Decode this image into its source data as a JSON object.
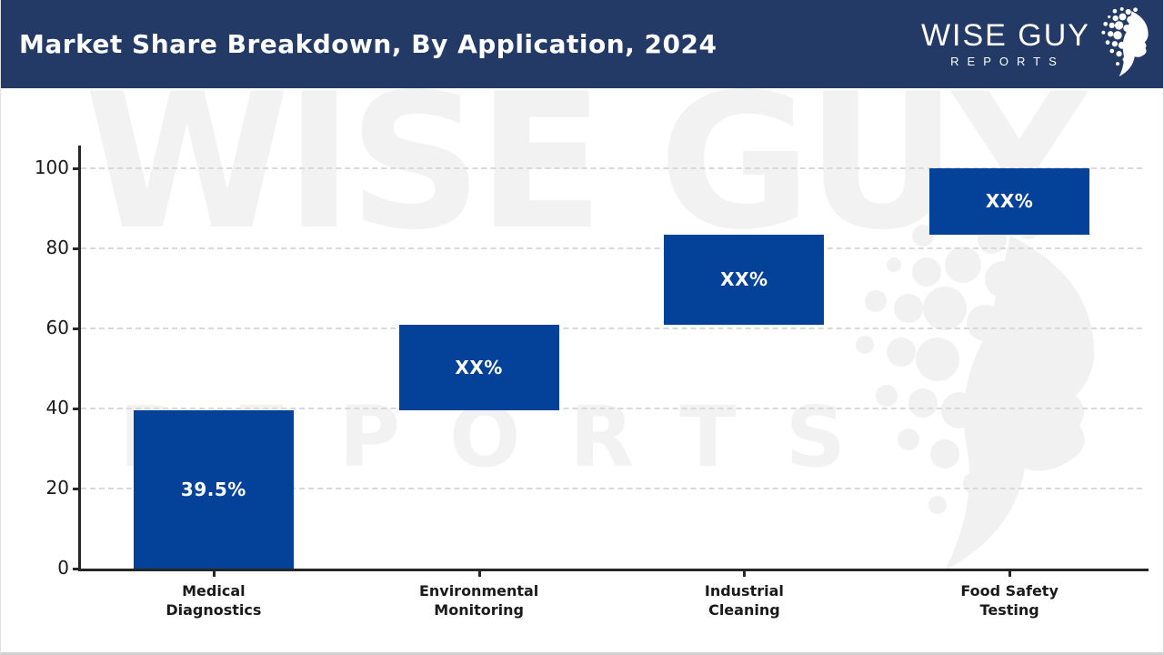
{
  "header": {
    "title": "Market Share Breakdown, By Application, 2024",
    "logo": {
      "name": "WISE GUY",
      "tagline": "REPORTS"
    }
  },
  "watermark": {
    "line1": "WISE GUY",
    "line2": "REPORTS"
  },
  "chart_data": {
    "type": "bar",
    "variant": "floating-waterfall-segments",
    "title": "Market Share Breakdown, By Application, 2024",
    "categories": [
      [
        "Medical",
        "Diagnostics"
      ],
      [
        "Environmental",
        "Monitoring"
      ],
      [
        "Industrial",
        "Cleaning"
      ],
      [
        "Food Safety",
        "Testing"
      ]
    ],
    "segments": [
      {
        "category": "Medical Diagnostics",
        "start": 0,
        "end": 39.5,
        "label": "39.5%"
      },
      {
        "category": "Environmental Monitoring",
        "start": 39.5,
        "end": 61.0,
        "label": "XX%"
      },
      {
        "category": "Industrial Cleaning",
        "start": 61.0,
        "end": 83.5,
        "label": "XX%"
      },
      {
        "category": "Food Safety Testing",
        "start": 83.5,
        "end": 100,
        "label": "XX%"
      }
    ],
    "ylim": [
      0,
      100
    ],
    "yticks": [
      0,
      20,
      40,
      60,
      80,
      100
    ],
    "grid": "horizontal-dashed",
    "legend": "none",
    "colors": {
      "bar": "#04429a",
      "bar_label": "#ffffff",
      "header_bg": "#223a65",
      "axis": "#262626",
      "tick_label": "#1a1a1a",
      "gridline": "#d9d9d9",
      "watermark": "#f2f2f2"
    }
  }
}
